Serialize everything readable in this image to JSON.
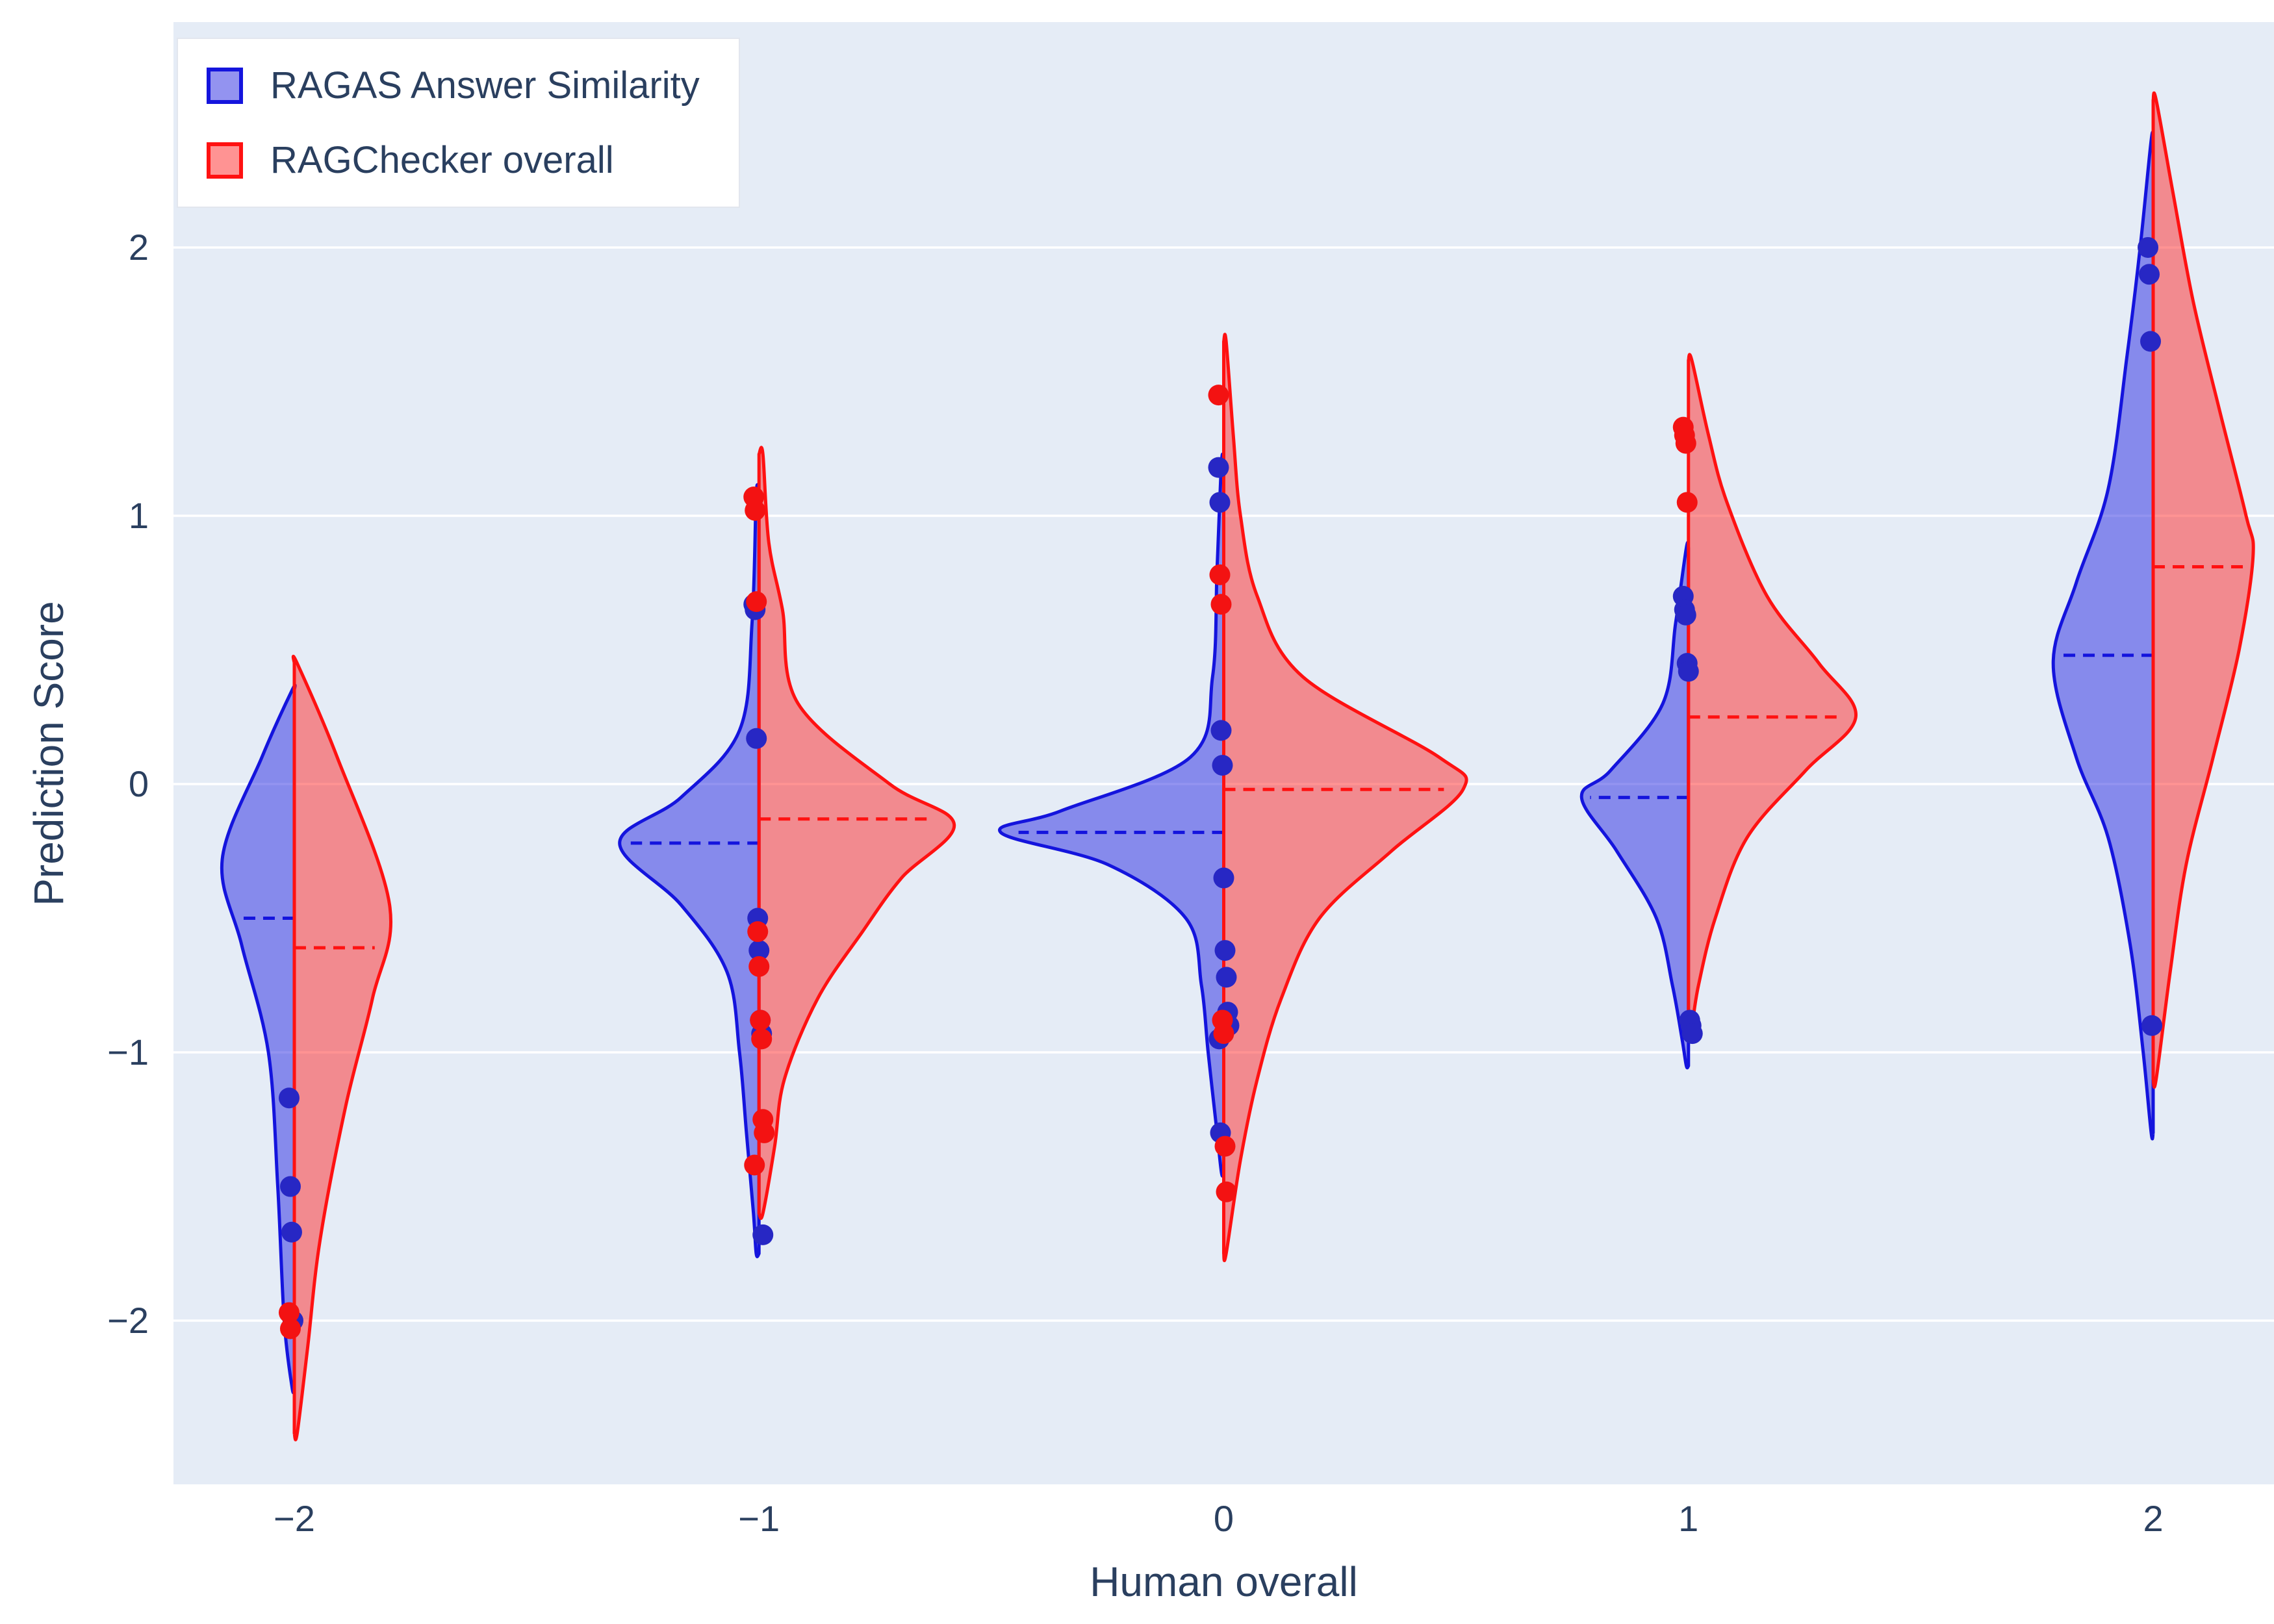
{
  "chart_data": {
    "type": "violin",
    "title": "",
    "xlabel": "Human overall",
    "ylabel": "Prediction Score",
    "legend_position": "top-left",
    "grid": true,
    "plot_bg": "#e5ecf6",
    "grid_color": "#ffffff",
    "text_color": "#2a3f5f",
    "xlim": [
      -2.26,
      2.26
    ],
    "ylim": [
      -2.61,
      2.84
    ],
    "yticks": [
      -2,
      -1,
      0,
      1,
      2
    ],
    "ytick_labels": [
      "−2",
      "−1",
      "0",
      "1",
      "2"
    ],
    "xticks": [
      -2,
      -1,
      0,
      1,
      2
    ],
    "xtick_labels": [
      "−2",
      "−1",
      "0",
      "1",
      "2"
    ],
    "series": [
      {
        "name": "RAGAS Answer Similarity",
        "side": "left",
        "color": "#1414dd",
        "fill": "rgba(40,40,225,0.5)",
        "point_color": "#2727c4"
      },
      {
        "name": "RAGChecker overall",
        "side": "right",
        "color": "#ff1111",
        "fill": "rgba(255,40,40,0.5)",
        "point_color": "#f31212"
      }
    ],
    "violins": [
      {
        "category": -2,
        "left": {
          "median": -0.5,
          "max_halfwidth": 0.155,
          "profile": [
            [
              0.35,
              0.03
            ],
            [
              0.1,
              0.45
            ],
            [
              -0.28,
              1.0
            ],
            [
              -0.6,
              0.73
            ],
            [
              -1.0,
              0.36
            ],
            [
              -1.5,
              0.23
            ],
            [
              -2.0,
              0.14
            ],
            [
              -2.25,
              0.03
            ]
          ],
          "points": [
            -1.17,
            -1.5,
            -1.67,
            -2.0
          ]
        },
        "right": {
          "median": -0.61,
          "max_halfwidth": 0.205,
          "profile": [
            [
              0.45,
              0.03
            ],
            [
              0.1,
              0.45
            ],
            [
              -0.45,
              1.0
            ],
            [
              -0.8,
              0.82
            ],
            [
              -1.2,
              0.54
            ],
            [
              -1.7,
              0.27
            ],
            [
              -2.1,
              0.14
            ],
            [
              -2.42,
              0.03
            ]
          ],
          "points": [
            -1.97,
            -2.03
          ]
        }
      },
      {
        "category": -1,
        "left": {
          "median": -0.22,
          "max_halfwidth": 0.3,
          "profile": [
            [
              1.08,
              0.02
            ],
            [
              0.6,
              0.05
            ],
            [
              0.2,
              0.14
            ],
            [
              -0.05,
              0.56
            ],
            [
              -0.22,
              1.0
            ],
            [
              -0.45,
              0.56
            ],
            [
              -0.7,
              0.23
            ],
            [
              -1.0,
              0.14
            ],
            [
              -1.3,
              0.09
            ],
            [
              -1.6,
              0.04
            ],
            [
              -1.75,
              0.02
            ]
          ],
          "points": [
            0.67,
            0.65,
            0.17,
            -0.5,
            -0.62,
            -0.88,
            -0.93,
            -1.68
          ]
        },
        "right": {
          "median": -0.13,
          "max_halfwidth": 0.42,
          "profile": [
            [
              1.23,
              0.02
            ],
            [
              0.9,
              0.05
            ],
            [
              0.65,
              0.12
            ],
            [
              0.3,
              0.2
            ],
            [
              0.0,
              0.67
            ],
            [
              -0.15,
              1.0
            ],
            [
              -0.35,
              0.73
            ],
            [
              -0.55,
              0.53
            ],
            [
              -0.8,
              0.3
            ],
            [
              -1.1,
              0.13
            ],
            [
              -1.35,
              0.08
            ],
            [
              -1.6,
              0.02
            ]
          ],
          "points": [
            1.07,
            1.02,
            0.68,
            -0.55,
            -0.68,
            -0.88,
            -0.95,
            -1.25,
            -1.3,
            -1.42
          ]
        }
      },
      {
        "category": 0,
        "left": {
          "median": -0.18,
          "max_halfwidth": 0.48,
          "profile": [
            [
              1.2,
              0.01
            ],
            [
              0.8,
              0.03
            ],
            [
              0.4,
              0.05
            ],
            [
              0.1,
              0.15
            ],
            [
              -0.1,
              0.73
            ],
            [
              -0.18,
              1.0
            ],
            [
              -0.3,
              0.52
            ],
            [
              -0.5,
              0.17
            ],
            [
              -0.75,
              0.1
            ],
            [
              -1.0,
              0.07
            ],
            [
              -1.3,
              0.03
            ],
            [
              -1.45,
              0.01
            ]
          ],
          "points": [
            1.18,
            1.05,
            0.2,
            0.07,
            -0.35,
            -0.62,
            -0.72,
            -0.85,
            -0.9,
            -0.95,
            -1.3
          ]
        },
        "right": {
          "median": -0.02,
          "max_halfwidth": 0.515,
          "profile": [
            [
              1.65,
              0.01
            ],
            [
              1.3,
              0.04
            ],
            [
              1.0,
              0.07
            ],
            [
              0.7,
              0.14
            ],
            [
              0.4,
              0.33
            ],
            [
              0.1,
              0.9
            ],
            [
              -0.02,
              1.0
            ],
            [
              -0.25,
              0.7
            ],
            [
              -0.5,
              0.4
            ],
            [
              -0.8,
              0.24
            ],
            [
              -1.1,
              0.14
            ],
            [
              -1.4,
              0.07
            ],
            [
              -1.75,
              0.01
            ]
          ],
          "points": [
            1.45,
            0.78,
            0.67,
            -0.88,
            -0.93,
            -1.35,
            -1.52
          ]
        }
      },
      {
        "category": 1,
        "left": {
          "median": -0.05,
          "max_halfwidth": 0.23,
          "profile": [
            [
              0.88,
              0.02
            ],
            [
              0.6,
              0.12
            ],
            [
              0.3,
              0.24
            ],
            [
              0.05,
              0.73
            ],
            [
              -0.05,
              1.0
            ],
            [
              -0.25,
              0.67
            ],
            [
              -0.5,
              0.3
            ],
            [
              -0.75,
              0.15
            ],
            [
              -0.95,
              0.06
            ],
            [
              -1.05,
              0.02
            ]
          ],
          "points": [
            0.7,
            0.65,
            0.63,
            0.45,
            0.42,
            -0.88,
            -0.9,
            -0.93
          ]
        },
        "right": {
          "median": 0.25,
          "max_halfwidth": 0.36,
          "profile": [
            [
              1.58,
              0.02
            ],
            [
              1.3,
              0.12
            ],
            [
              1.05,
              0.23
            ],
            [
              0.7,
              0.47
            ],
            [
              0.45,
              0.78
            ],
            [
              0.25,
              1.0
            ],
            [
              0.05,
              0.7
            ],
            [
              -0.2,
              0.35
            ],
            [
              -0.5,
              0.16
            ],
            [
              -0.75,
              0.06
            ],
            [
              -0.9,
              0.02
            ]
          ],
          "points": [
            1.33,
            1.3,
            1.27,
            1.05
          ]
        }
      },
      {
        "category": 2,
        "left": {
          "median": 0.48,
          "max_halfwidth": 0.215,
          "profile": [
            [
              2.4,
              0.02
            ],
            [
              2.0,
              0.13
            ],
            [
              1.6,
              0.26
            ],
            [
              1.1,
              0.45
            ],
            [
              0.75,
              0.77
            ],
            [
              0.45,
              1.0
            ],
            [
              0.1,
              0.77
            ],
            [
              -0.2,
              0.45
            ],
            [
              -0.6,
              0.23
            ],
            [
              -1.0,
              0.1
            ],
            [
              -1.3,
              0.02
            ]
          ],
          "points": [
            2.0,
            1.9,
            1.65,
            -0.9
          ]
        },
        "right": {
          "median": 0.81,
          "max_halfwidth": 0.215,
          "profile": [
            [
              2.55,
              0.03
            ],
            [
              2.2,
              0.2
            ],
            [
              1.8,
              0.4
            ],
            [
              1.4,
              0.66
            ],
            [
              1.0,
              0.93
            ],
            [
              0.85,
              1.0
            ],
            [
              0.5,
              0.86
            ],
            [
              0.1,
              0.6
            ],
            [
              -0.3,
              0.33
            ],
            [
              -0.7,
              0.17
            ],
            [
              -1.1,
              0.03
            ]
          ],
          "points": []
        }
      }
    ]
  }
}
